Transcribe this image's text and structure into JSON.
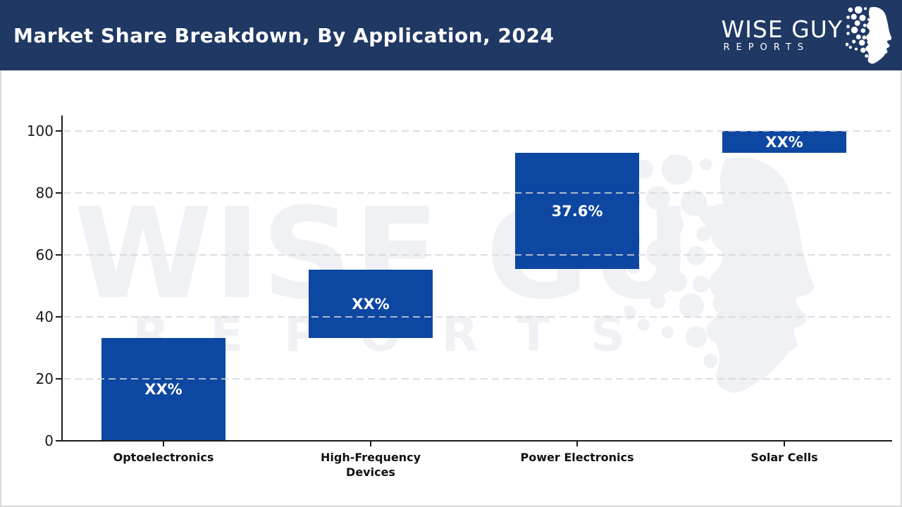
{
  "header": {
    "title": "Market Share Breakdown, By Application, 2024",
    "logo": {
      "wise_guy": "WISE GUY",
      "reports": "REPORTS"
    }
  },
  "watermark": {
    "wise_guy": "WISE GUY",
    "reports": "REPORTS"
  },
  "chart_data": {
    "type": "bar",
    "subtype": "waterfall-stacked-percentage",
    "title": "Market Share Breakdown, By Application, 2024",
    "categories": [
      "Optoelectronics",
      "High-Frequency\nDevices",
      "Power Electronics",
      "Solar Cells"
    ],
    "segments": [
      {
        "category": "Optoelectronics",
        "start": 0,
        "end": 33.2,
        "value_label": "XX%"
      },
      {
        "category": "High-Frequency Devices",
        "start": 33.2,
        "end": 55.3,
        "value_label": "XX%"
      },
      {
        "category": "Power Electronics",
        "start": 55.3,
        "end": 92.9,
        "value_label": "37.6%"
      },
      {
        "category": "Solar Cells",
        "start": 92.9,
        "end": 100,
        "value_label": "XX%"
      }
    ],
    "y_ticks": [
      0,
      20,
      40,
      60,
      80,
      100
    ],
    "ylim": [
      0,
      100
    ],
    "xlabel": "",
    "ylabel": "",
    "grid": "horizontal-dashed",
    "legend": "none",
    "bar_color": "#0d47a1",
    "value_label_color": "#ffffff"
  },
  "colors": {
    "header_bg": "#203864",
    "title_text": "#ffffff",
    "bar_fill": "#0d47a1",
    "axis": "#1c1c1c",
    "gridline": "#d9d9d9",
    "watermark": "#eff1f4",
    "border": "#d9d9d9"
  }
}
